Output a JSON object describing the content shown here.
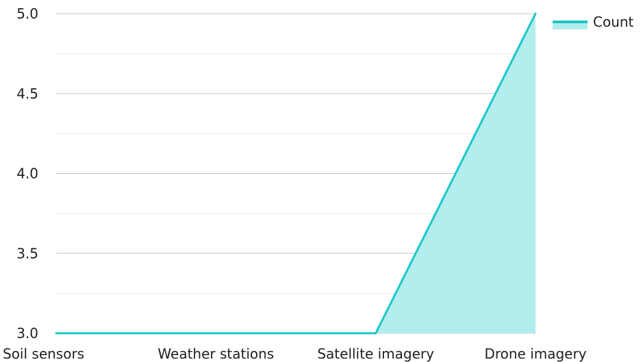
{
  "chart_data": {
    "type": "area",
    "categories": [
      "Soil sensors",
      "Weather stations",
      "Satellite imagery",
      "Drone imagery"
    ],
    "series": [
      {
        "name": "Count",
        "values": [
          3,
          3,
          3,
          5
        ],
        "color": "#1cc6c6",
        "fill": "#b2eded"
      }
    ],
    "ylim": [
      3.0,
      5.0
    ],
    "yticks": [
      "3.0",
      "3.5",
      "4.0",
      "4.5",
      "5.0"
    ],
    "grid": true,
    "legend": "top-right",
    "title": "",
    "xlabel": "",
    "ylabel": ""
  }
}
